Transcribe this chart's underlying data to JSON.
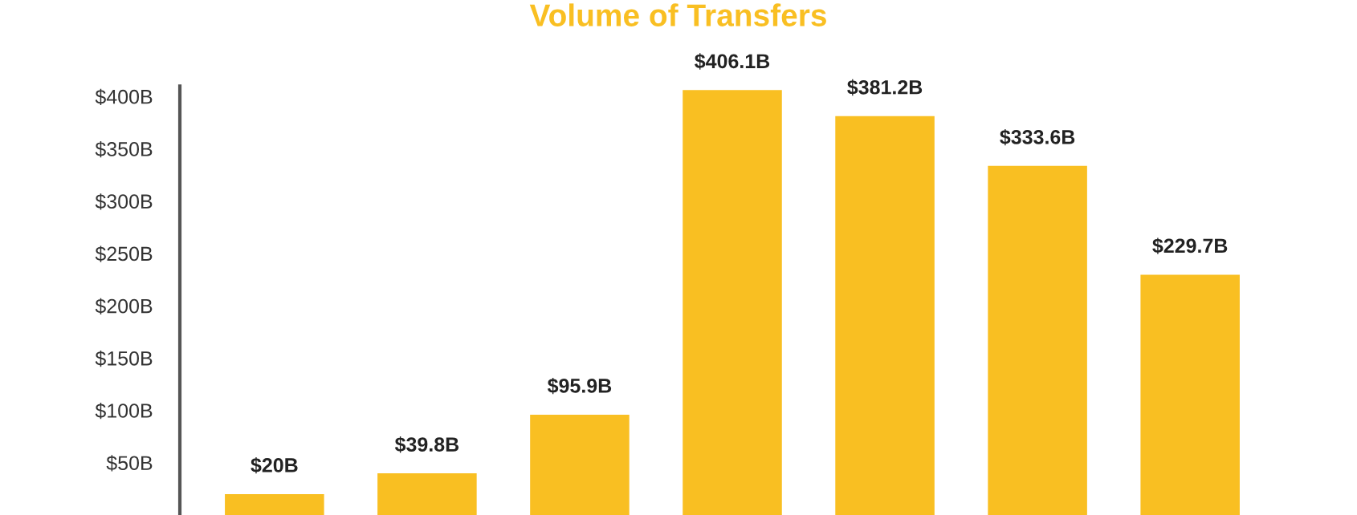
{
  "chart_data": {
    "type": "bar",
    "title": "Volume of Transfers",
    "categories": [
      null,
      null,
      null,
      null,
      null,
      null,
      null
    ],
    "values": [
      20,
      39.8,
      95.9,
      406.1,
      381.2,
      333.6,
      229.7
    ],
    "value_labels": [
      "$20B",
      "$39.8B",
      "$95.9B",
      "$406.1B",
      "$381.2B",
      "$333.6B",
      "$229.7B"
    ],
    "color": "#f9bf22",
    "ylim": [
      0,
      410
    ],
    "yticks": [
      {
        "value": 50,
        "label": "$50B"
      },
      {
        "value": 100,
        "label": "$100B"
      },
      {
        "value": 150,
        "label": "$150B"
      },
      {
        "value": 200,
        "label": "$200B"
      },
      {
        "value": 250,
        "label": "$250B"
      },
      {
        "value": 300,
        "label": "$300B"
      },
      {
        "value": 350,
        "label": "$350B"
      },
      {
        "value": 400,
        "label": "$400B"
      }
    ],
    "grid": false
  }
}
